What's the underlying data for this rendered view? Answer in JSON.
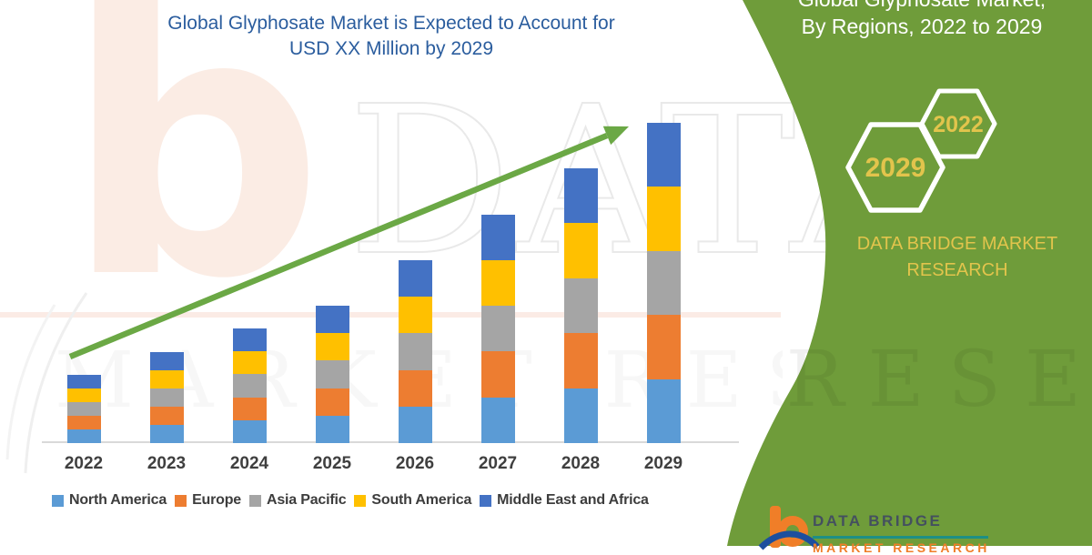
{
  "chart_data": {
    "type": "bar",
    "stacked": true,
    "title": "Global Glyphosate Market is Expected to Account for USD XX Million by 2029",
    "x": [
      "2022",
      "2023",
      "2024",
      "2025",
      "2026",
      "2027",
      "2028",
      "2029"
    ],
    "series": [
      {
        "name": "North America",
        "color": "#5B9BD5",
        "values": [
          3,
          4,
          5,
          6,
          8,
          10,
          12,
          14
        ]
      },
      {
        "name": "Europe",
        "color": "#ED7D31",
        "values": [
          3,
          4,
          5,
          6,
          8,
          10,
          12,
          14
        ]
      },
      {
        "name": "Asia Pacific",
        "color": "#A5A5A5",
        "values": [
          3,
          4,
          5,
          6,
          8,
          10,
          12,
          14
        ]
      },
      {
        "name": "South America",
        "color": "#FFC000",
        "values": [
          3,
          4,
          5,
          6,
          8,
          10,
          12,
          14
        ]
      },
      {
        "name": "Middle East and Africa",
        "color": "#4472C4",
        "values": [
          3,
          4,
          5,
          6,
          8,
          10,
          12,
          14
        ]
      }
    ],
    "xlabel": "",
    "ylabel": "",
    "y_axis_shown": false,
    "value_note": "Y axis is unlabeled (USD XX Million placeholder); values are relative units estimated from bar heights; each region contributes an equal fifth of every bar",
    "legend_position": "bottom",
    "grid": false,
    "trend_arrow": {
      "from_x": "2022",
      "to_x": "2029",
      "color": "#6ba845"
    }
  },
  "chart_area": {
    "title_line1": "Global Glyphosate Market is Expected to Account for",
    "title_line2": "USD XX Million by 2029"
  },
  "sidebar": {
    "title_line1": "Global Glyphosate Market,",
    "title_line2": "By Regions, 2022 to 2029",
    "hexagon_large_label": "2029",
    "hexagon_small_label": "2022",
    "brand_line1": "DATA BRIDGE MARKET",
    "brand_line2": "RESEARCH",
    "panel_green": "#6f9c3a",
    "accent_gold": "#e2c44c"
  },
  "footer_logo": {
    "brand_text": "DATA BRIDGE",
    "sub_text": "MARKET RESEARCH"
  },
  "watermarks": {
    "big_letter": "b",
    "row1": "DATA BRIDGE",
    "row2": "MARKET RESEARCH"
  },
  "colors": {
    "title_blue": "#2b5d9e",
    "arrow_green": "#6ba845",
    "axis_gray": "#d9d9d9",
    "axis_label_gray": "#3f3f3f",
    "legend_text_gray": "#3d3d3d",
    "footer_text_slate": "#44505f",
    "footer_rule_teal": "#1d8f85",
    "logo_orange": "#f07e28",
    "logo_blue": "#1d4f9e"
  }
}
